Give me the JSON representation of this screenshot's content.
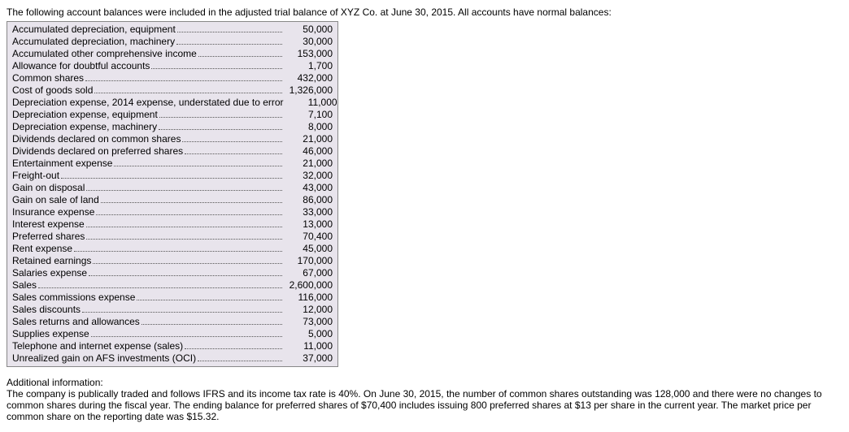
{
  "intro_text": "The following account balances were included in the adjusted trial balance of XYZ Co. at June 30, 2015. All accounts have normal balances:",
  "trial_balance": [
    {
      "label": "Accumulated depreciation, equipment",
      "value": "50,000"
    },
    {
      "label": "Accumulated depreciation, machinery",
      "value": "30,000"
    },
    {
      "label": "Accumulated other comprehensive income",
      "value": "153,000"
    },
    {
      "label": "Allowance for doubtful accounts",
      "value": "1,700"
    },
    {
      "label": "Common shares",
      "value": "432,000"
    },
    {
      "label": "Cost of goods sold",
      "value": "1,326,000"
    },
    {
      "label": "Depreciation expense, 2014 expense, understated due to error",
      "value": "11,000",
      "no_leader": true
    },
    {
      "label": "Depreciation expense, equipment",
      "value": "7,100"
    },
    {
      "label": "Depreciation expense, machinery",
      "value": "8,000"
    },
    {
      "label": "Dividends declared on common shares",
      "value": "21,000"
    },
    {
      "label": "Dividends declared on preferred shares",
      "value": "46,000"
    },
    {
      "label": "Entertainment expense",
      "value": "21,000"
    },
    {
      "label": "Freight-out",
      "value": "32,000"
    },
    {
      "label": "Gain on disposal",
      "value": "43,000"
    },
    {
      "label": "Gain on sale of land",
      "value": "86,000"
    },
    {
      "label": "Insurance expense",
      "value": "33,000"
    },
    {
      "label": "Interest expense",
      "value": "13,000"
    },
    {
      "label": "Preferred shares",
      "value": "70,400"
    },
    {
      "label": "Rent expense",
      "value": "45,000"
    },
    {
      "label": "Retained earnings",
      "value": "170,000"
    },
    {
      "label": "Salaries expense",
      "value": "67,000"
    },
    {
      "label": "Sales",
      "value": "2,600,000"
    },
    {
      "label": "Sales commissions expense",
      "value": "116,000"
    },
    {
      "label": "Sales discounts",
      "value": "12,000"
    },
    {
      "label": "Sales returns and allowances",
      "value": "73,000"
    },
    {
      "label": "Supplies expense",
      "value": "5,000"
    },
    {
      "label": "Telephone and internet expense (sales)",
      "value": "11,000"
    },
    {
      "label": "Unrealized gain on AFS investments (OCI)",
      "value": "37,000"
    }
  ],
  "additional_info_header": "Additional information:",
  "additional_info_body": "The company is publically traded and follows IFRS and its income tax rate is 40%. On June 30, 2015, the number of common shares outstanding was 128,000 and there were no changes to common shares during the fiscal year. The ending balance for preferred shares of $70,400 includes issuing 800 preferred shares at $13 per share in the current year. The market price per common share on the reporting date was $15.32."
}
